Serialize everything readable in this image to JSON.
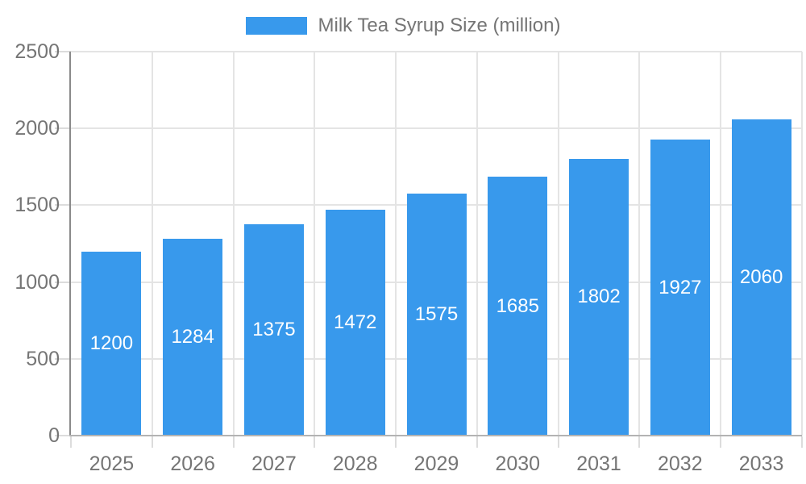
{
  "legend": {
    "label": "Milk Tea Syrup Size (million)"
  },
  "chart_data": {
    "type": "bar",
    "title": "Milk Tea Syrup Size (million)",
    "categories": [
      "2025",
      "2026",
      "2027",
      "2028",
      "2029",
      "2030",
      "2031",
      "2032",
      "2033"
    ],
    "values": [
      1200,
      1284,
      1375,
      1472,
      1575,
      1685,
      1802,
      1927,
      2060
    ],
    "xlabel": "",
    "ylabel": "",
    "ylim": [
      0,
      2500
    ],
    "ytick_step": 500,
    "yticks": [
      0,
      500,
      1000,
      1500,
      2000,
      2500
    ],
    "grid": true,
    "legend_position": "top",
    "colors": {
      "bar": "#3899ec",
      "value_label": "#ffffff",
      "axis_label": "#757575"
    }
  }
}
